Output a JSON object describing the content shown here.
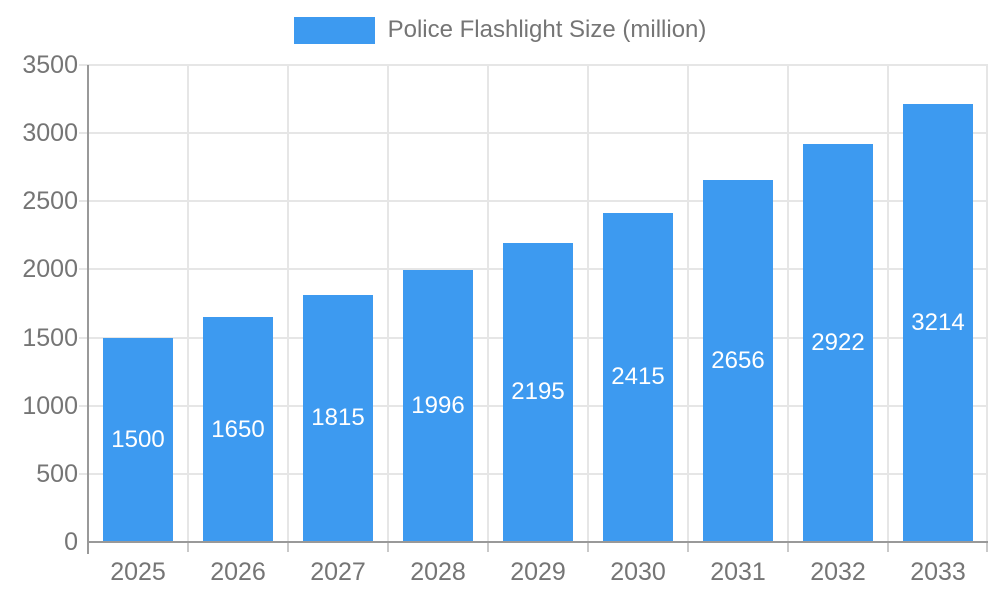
{
  "legend": {
    "items": [
      {
        "label": "Police Flashlight Size (million)",
        "color": "#3D9AF0"
      }
    ]
  },
  "chart_data": {
    "type": "bar",
    "title": "Police Flashlight Size (million)",
    "categories": [
      "2025",
      "2026",
      "2027",
      "2028",
      "2029",
      "2030",
      "2031",
      "2032",
      "2033"
    ],
    "values": [
      1500,
      1650,
      1815,
      1996,
      2195,
      2415,
      2656,
      2922,
      3214
    ],
    "xlabel": "",
    "ylabel": "",
    "ylim": [
      0,
      3500
    ],
    "ytick_step": 500,
    "grid": true,
    "legend_position": "top-center",
    "value_labels": "inside-center",
    "colors": {
      "bar": "#3D9AF0",
      "grid": "#e6e6e6",
      "axis": "#999999",
      "tick": "#c9c9c9",
      "axis_text": "#757575",
      "value_text": "#ffffff"
    }
  }
}
